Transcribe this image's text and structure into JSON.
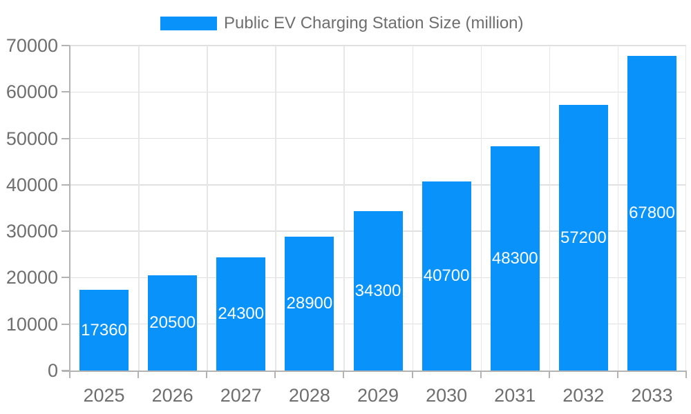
{
  "legend": {
    "label": "Public EV Charging Station Size (million)"
  },
  "chart_data": {
    "type": "bar",
    "title": "",
    "xlabel": "",
    "ylabel": "",
    "categories": [
      "2025",
      "2026",
      "2027",
      "2028",
      "2029",
      "2030",
      "2031",
      "2032",
      "2033"
    ],
    "series": [
      {
        "name": "Public EV Charging Station Size (million)",
        "values": [
          17360,
          20500,
          24300,
          28900,
          34300,
          40700,
          48300,
          57200,
          67800
        ]
      }
    ],
    "value_labels": [
      "17360",
      "20500",
      "24300",
      "28900",
      "34300",
      "40700",
      "48300",
      "57200",
      "67800"
    ],
    "ylim": [
      0,
      70000
    ],
    "yticks": [
      0,
      10000,
      20000,
      30000,
      40000,
      50000,
      60000,
      70000
    ],
    "ytick_labels": [
      "0",
      "10000",
      "20000",
      "30000",
      "40000",
      "50000",
      "60000",
      "70000"
    ],
    "grid": true,
    "legend_position": "top-center",
    "colors": {
      "bar": "#0892FA",
      "grid_horizontal": "#e0e0e0",
      "grid_vertical": "#e6e6e6",
      "axis": "#b3b3b3",
      "tick_label": "#6e6e6e",
      "value_label": "#ffffff",
      "background": "#ffffff"
    }
  }
}
